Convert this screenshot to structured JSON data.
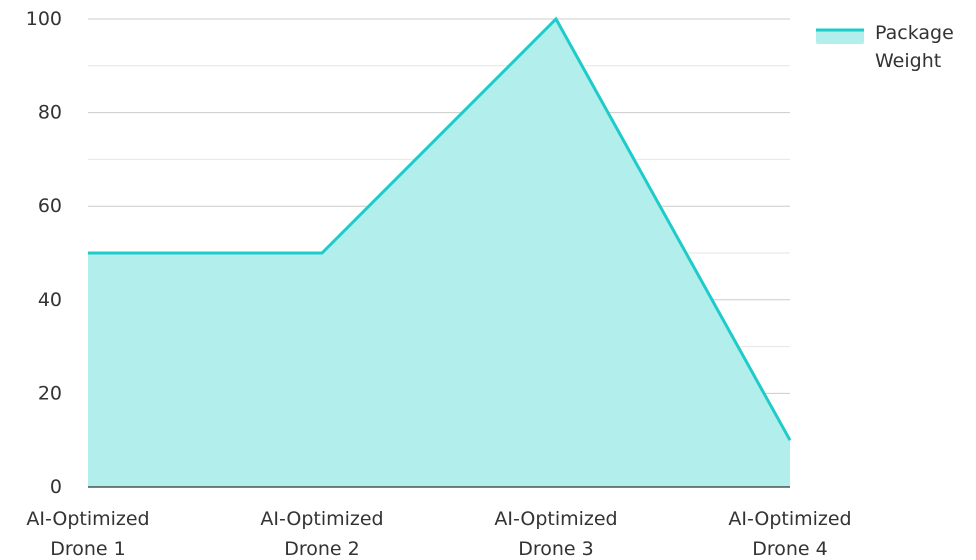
{
  "chart_data": {
    "type": "area",
    "categories": [
      "AI-Optimized Drone 1",
      "AI-Optimized Drone 2",
      "AI-Optimized Drone 3",
      "AI-Optimized Drone 4"
    ],
    "category_lines": [
      [
        "AI-Optimized",
        "Drone 1"
      ],
      [
        "AI-Optimized",
        "Drone 2"
      ],
      [
        "AI-Optimized",
        "Drone 3"
      ],
      [
        "AI-Optimized",
        "Drone 4"
      ]
    ],
    "series": [
      {
        "name": "Package Weight",
        "legend_lines": [
          "Package",
          "Weight"
        ],
        "values": [
          50,
          50,
          100,
          10
        ],
        "color": "#1ecbcb",
        "fill": "#b2eeeb"
      }
    ],
    "y_ticks": [
      "0",
      "20",
      "40",
      "60",
      "80",
      "100"
    ],
    "ylim": [
      0,
      100
    ],
    "grid": true,
    "legend_position": "top-right",
    "title": "",
    "xlabel": "",
    "ylabel": ""
  }
}
